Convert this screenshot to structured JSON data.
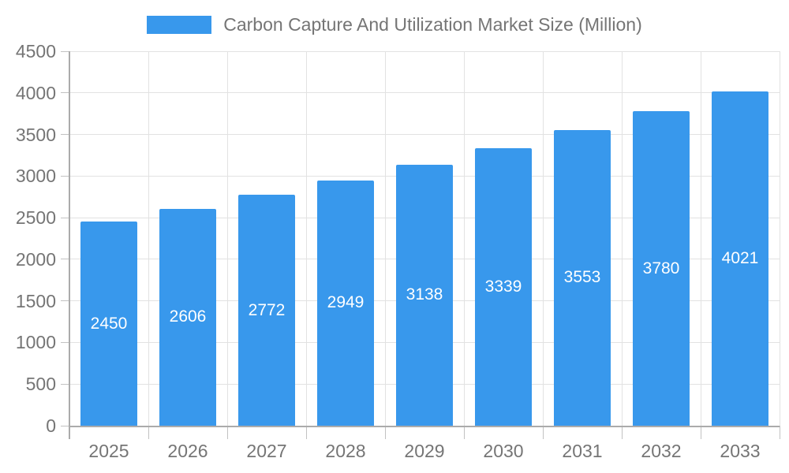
{
  "legend": {
    "label": "Carbon Capture And Utilization Market Size (Million)",
    "swatch_color": "#3898ec"
  },
  "chart_data": {
    "type": "bar",
    "title": "Carbon Capture And Utilization Market Size (Million)",
    "categories": [
      "2025",
      "2026",
      "2027",
      "2028",
      "2029",
      "2030",
      "2031",
      "2032",
      "2033"
    ],
    "values": [
      2450,
      2606,
      2772,
      2949,
      3138,
      3339,
      3553,
      3780,
      4021
    ],
    "xlabel": "",
    "ylabel": "",
    "ylim": [
      0,
      4500
    ],
    "yticks": [
      0,
      500,
      1000,
      1500,
      2000,
      2500,
      3000,
      3500,
      4000,
      4500
    ],
    "grid": true,
    "legend_position": "top-center",
    "bar_color": "#3898ec",
    "bar_label_color": "#ffffff",
    "axis_text_color": "#757575",
    "gridline_color": "#e2e2e2",
    "axis_line_color": "#ababab"
  }
}
